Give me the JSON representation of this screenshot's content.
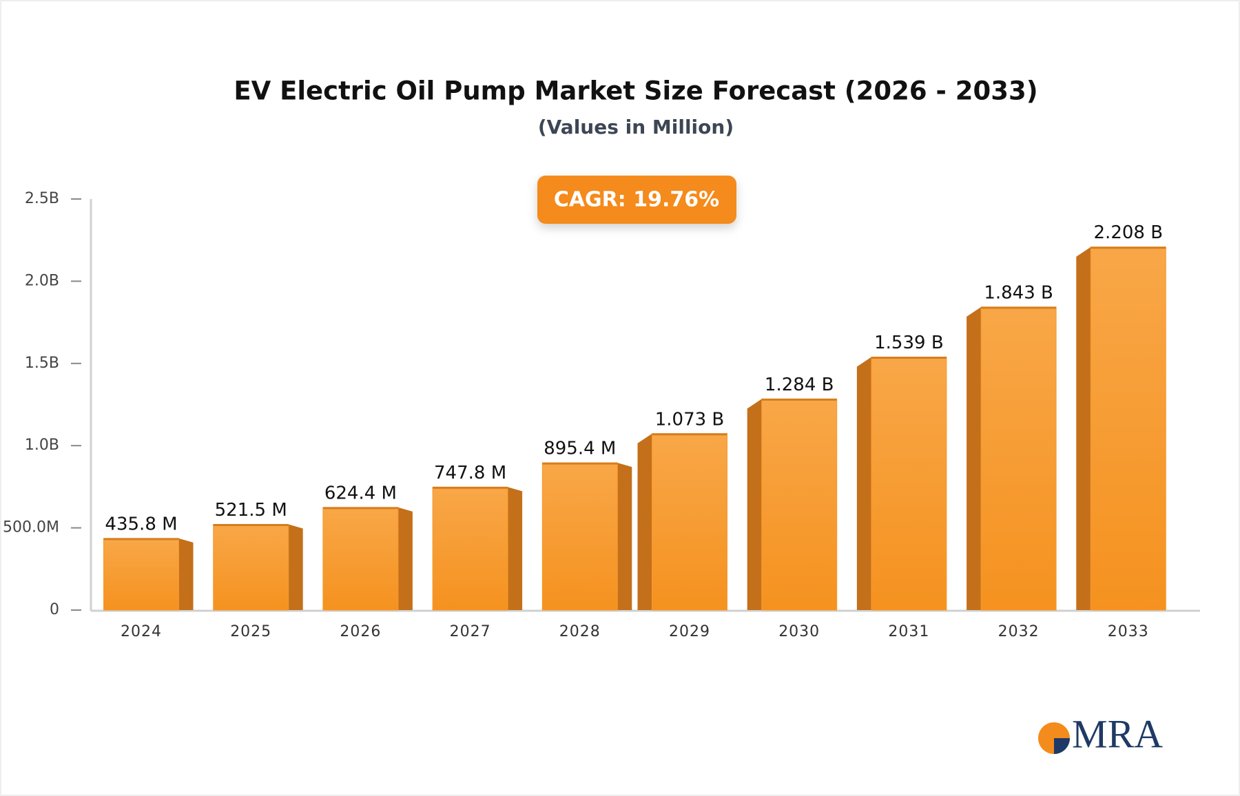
{
  "chart_data": {
    "type": "bar",
    "title": "EV Electric Oil Pump Market Size Forecast (2026 - 2033)",
    "subtitle": "(Values in Million)",
    "annotation": "CAGR: 19.76%",
    "logo": "MRA",
    "categories": [
      "2024",
      "2025",
      "2026",
      "2027",
      "2028",
      "2029",
      "2030",
      "2031",
      "2032",
      "2033"
    ],
    "values": [
      435.8,
      521.5,
      624.4,
      747.8,
      895.4,
      1073,
      1284,
      1539,
      1843,
      2208
    ],
    "value_labels": [
      "435.8 M",
      "521.5 M",
      "624.4 M",
      "747.8 M",
      "895.4 M",
      "1.073 B",
      "1.284 B",
      "1.539 B",
      "1.843 B",
      "2.208 B"
    ],
    "color": "#f7982e",
    "ylim": [
      0,
      2500
    ],
    "yticks": [
      0,
      {
        "value": 500,
        "label": "500.0M"
      },
      {
        "value": 1000,
        "label": "1.0B"
      },
      {
        "value": 1500,
        "label": "1.5B"
      },
      {
        "value": 2000,
        "label": "2.0B"
      },
      {
        "value": 2500,
        "label": "2.5B"
      }
    ],
    "grid": false
  }
}
